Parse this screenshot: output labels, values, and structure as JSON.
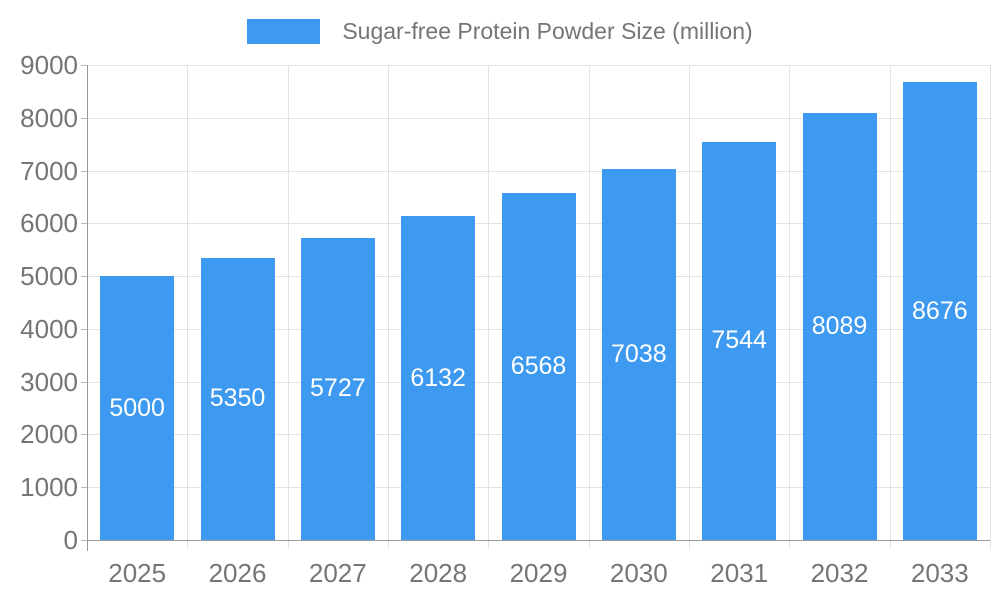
{
  "chart_data": {
    "type": "bar",
    "title": "Sugar-free Protein Powder Size (million)",
    "categories": [
      "2025",
      "2026",
      "2027",
      "2028",
      "2029",
      "2030",
      "2031",
      "2032",
      "2033"
    ],
    "values": [
      5000,
      5350,
      5727,
      6132,
      6568,
      7038,
      7544,
      8089,
      8676
    ],
    "xlabel": "",
    "ylabel": "",
    "ylim": [
      0,
      9000
    ],
    "yticks": [
      0,
      1000,
      2000,
      3000,
      4000,
      5000,
      6000,
      7000,
      8000,
      9000
    ],
    "grid": true,
    "legend_position": "top",
    "value_labels": "inside-center"
  },
  "colors": {
    "bar": "#3D9AF0",
    "bar_value_text": "#FFFFFF",
    "axis_text": "#757575",
    "grid_line": "#E2E2E2",
    "axis_line": "#999999",
    "tick": "#BBBBBB",
    "background": "#FFFFFF"
  }
}
